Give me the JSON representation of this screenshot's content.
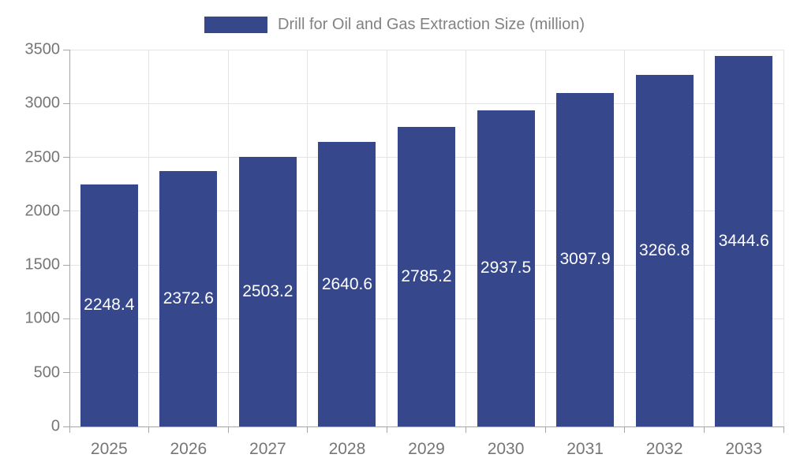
{
  "legend": {
    "label": "Drill for Oil and Gas Extraction Size (million)",
    "swatch_color": "#36478c"
  },
  "chart_data": {
    "type": "bar",
    "title": "Drill for Oil and Gas Extraction Size (million)",
    "categories": [
      "2025",
      "2026",
      "2027",
      "2028",
      "2029",
      "2030",
      "2031",
      "2032",
      "2033"
    ],
    "values": [
      2248.4,
      2372.6,
      2503.2,
      2640.6,
      2785.2,
      2937.5,
      3097.9,
      3266.8,
      3444.6
    ],
    "value_label_decimals": 1,
    "xlabel": "",
    "ylabel": "",
    "ylim": [
      0,
      3500
    ],
    "yticks": [
      0,
      500,
      1000,
      1500,
      2000,
      2500,
      3000,
      3500
    ],
    "grid": true,
    "legend_position": "top-center",
    "bar_color": "#36478c",
    "value_label_color": "#ffffff",
    "axis_color": "#a6a6a6",
    "grid_color": "#e4e4e4",
    "tick_label_color": "#767676"
  }
}
